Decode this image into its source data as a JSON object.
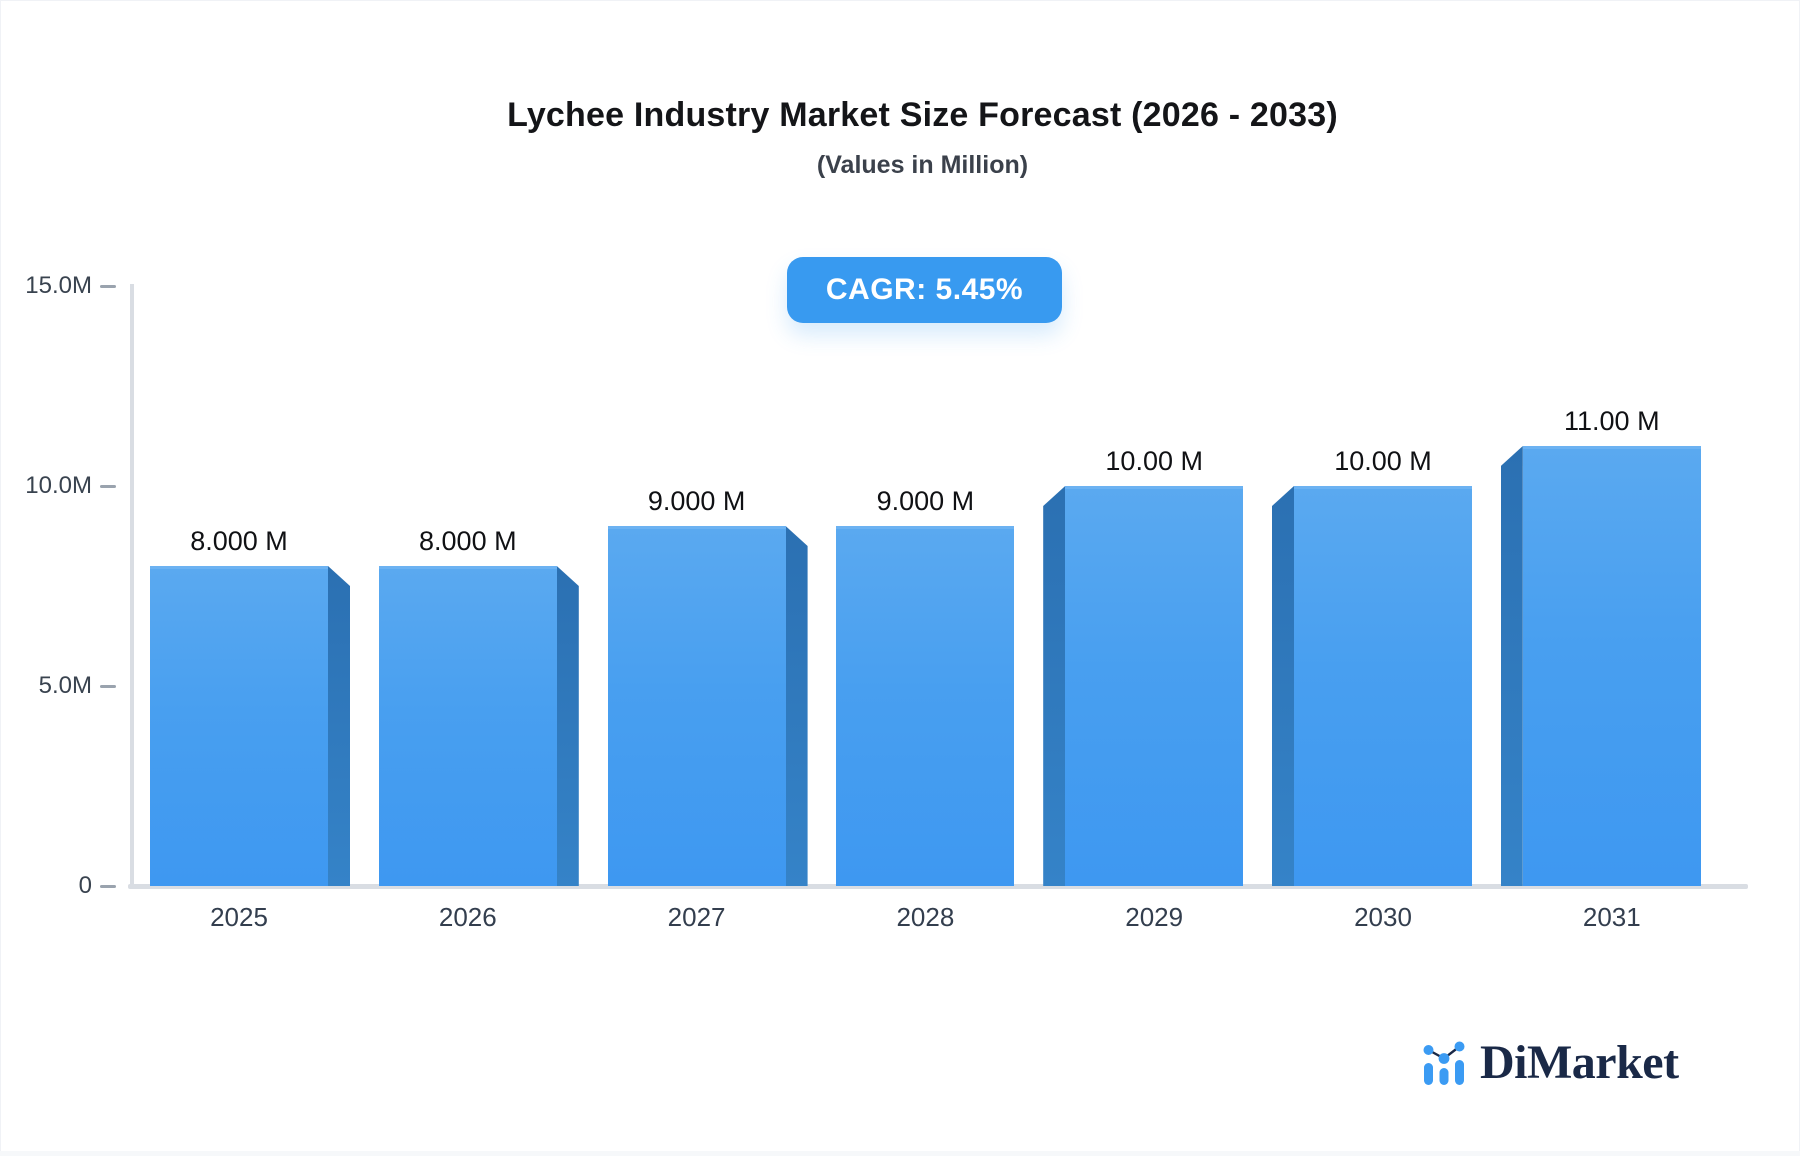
{
  "header": {
    "title": "Lychee Industry Market Size Forecast (2026 - 2033)",
    "subtitle": "(Values in Million)",
    "cagr_label": "CAGR: 5.45%"
  },
  "brand": {
    "name": "DiMarket",
    "icon": "dimarket-logo-icon"
  },
  "colors": {
    "bar_top": "#5aa9f0",
    "bar_bottom": "#3e98f1",
    "bar_side": "#2e74b9",
    "badge_bg": "#389af0",
    "axis_line": "#d9dde3",
    "tick_dash": "#9aa3ae",
    "text_dark": "#141518",
    "label_slate": "#333e4e",
    "brand_navy": "#1a2947",
    "brand_blue": "#3b9bf3"
  },
  "chart_data": {
    "type": "bar",
    "title": "Lychee Industry Market Size Forecast (2026 - 2033)",
    "subtitle": "(Values in Million)",
    "cagr": "5.45%",
    "unit": "Million",
    "categories": [
      "2025",
      "2026",
      "2027",
      "2028",
      "2029",
      "2030",
      "2031"
    ],
    "values": [
      8,
      8,
      9,
      9,
      10,
      10,
      11
    ],
    "value_labels": [
      "8.000 M",
      "8.000 M",
      "9.000 M",
      "9.000 M",
      "10.00 M",
      "10.00 M",
      "11.00 M"
    ],
    "y_ticks": [
      {
        "label": "15.0M",
        "value": 15
      },
      {
        "label": "10.0M",
        "value": 10
      },
      {
        "label": "5.0M",
        "value": 5
      },
      {
        "label": "0",
        "value": 0
      }
    ],
    "ylim": [
      0,
      15
    ],
    "grid": false,
    "legend": false,
    "bar_3d_side": [
      "right",
      "right",
      "right",
      "none",
      "left",
      "left",
      "left"
    ]
  }
}
